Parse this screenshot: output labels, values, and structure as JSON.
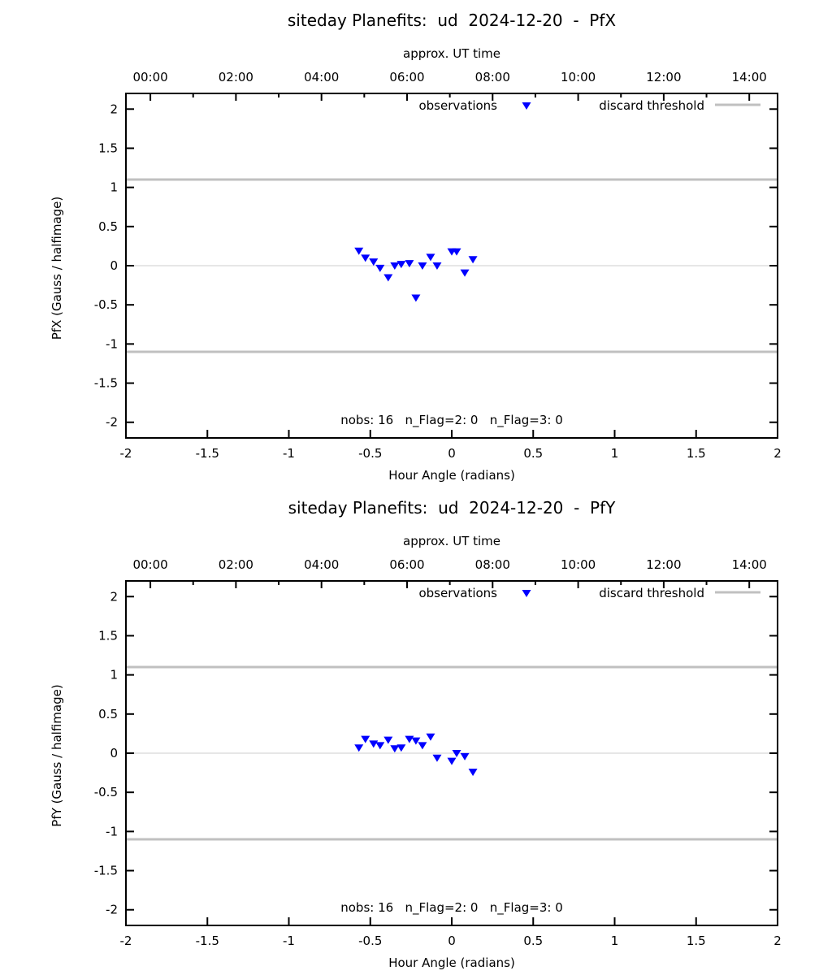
{
  "page": {
    "background": "#ffffff"
  },
  "colors": {
    "observations": "#0000ff",
    "threshold": "#c0c0c0",
    "zero_line": "#cccccc",
    "axis": "#000000"
  },
  "chart_data": [
    {
      "type": "scatter",
      "title": "siteday Planefits:  ud  2024-12-20  -  PfX",
      "x2label": "approx. UT time",
      "xlabel": "Hour Angle (radians)",
      "ylabel": "PfX (Gauss / halfimage)",
      "annotation": "nobs: 16   n_Flag=2: 0   n_Flag=3: 0",
      "xlim": [
        -2,
        2
      ],
      "ylim": [
        -2.2,
        2.2
      ],
      "grid": "zero-line-only",
      "legend_position": "top-inside",
      "x_ticks": [
        -2,
        -1.5,
        -1,
        -0.5,
        0,
        0.5,
        1,
        1.5,
        2
      ],
      "x_tick_labels": [
        "-2",
        "-1.5",
        "-1",
        "-0.5",
        "0",
        "0.5",
        "1",
        "1.5",
        "2"
      ],
      "y_ticks": [
        2,
        1.5,
        1,
        0.5,
        0,
        -0.5,
        -1,
        -1.5,
        -2
      ],
      "y_tick_labels": [
        "2",
        "1.5",
        "1",
        "0.5",
        "0",
        "-0.5",
        "-1",
        "-1.5",
        "-2"
      ],
      "x2_axis": {
        "labels": [
          "00:00",
          "02:00",
          "04:00",
          "06:00",
          "08:00",
          "10:00",
          "12:00",
          "14:00"
        ],
        "first_hour": 0,
        "last_hour": 14,
        "label_every_hours": 2,
        "hour_angle_at_0h": -1.85,
        "radians_per_hour": 0.2626
      },
      "thresholds": [
        1.1,
        -1.1
      ],
      "legend": [
        {
          "label": "observations",
          "marker": "triangle-down",
          "color": "#0000ff"
        },
        {
          "label": "discard threshold",
          "marker": "line",
          "color": "#c0c0c0"
        }
      ],
      "series": [
        {
          "name": "observations",
          "marker": "triangle-down",
          "color": "#0000ff",
          "points": [
            [
              -0.57,
              0.19
            ],
            [
              -0.53,
              0.1
            ],
            [
              -0.48,
              0.05
            ],
            [
              -0.44,
              -0.03
            ],
            [
              -0.39,
              -0.15
            ],
            [
              -0.35,
              0.0
            ],
            [
              -0.31,
              0.02
            ],
            [
              -0.26,
              0.03
            ],
            [
              -0.22,
              -0.41
            ],
            [
              -0.18,
              0.0
            ],
            [
              -0.13,
              0.11
            ],
            [
              -0.09,
              0.0
            ],
            [
              0.0,
              0.18
            ],
            [
              0.03,
              0.18
            ],
            [
              0.08,
              -0.09
            ],
            [
              0.13,
              0.08
            ]
          ]
        }
      ]
    },
    {
      "type": "scatter",
      "title": "siteday Planefits:  ud  2024-12-20  -  PfY",
      "x2label": "approx. UT time",
      "xlabel": "Hour Angle (radians)",
      "ylabel": "PfY (Gauss / halfimage)",
      "annotation": "nobs: 16   n_Flag=2: 0   n_Flag=3: 0",
      "xlim": [
        -2,
        2
      ],
      "ylim": [
        -2.2,
        2.2
      ],
      "grid": "zero-line-only",
      "legend_position": "top-inside",
      "x_ticks": [
        -2,
        -1.5,
        -1,
        -0.5,
        0,
        0.5,
        1,
        1.5,
        2
      ],
      "x_tick_labels": [
        "-2",
        "-1.5",
        "-1",
        "-0.5",
        "0",
        "0.5",
        "1",
        "1.5",
        "2"
      ],
      "y_ticks": [
        2,
        1.5,
        1,
        0.5,
        0,
        -0.5,
        -1,
        -1.5,
        -2
      ],
      "y_tick_labels": [
        "2",
        "1.5",
        "1",
        "0.5",
        "0",
        "-0.5",
        "-1",
        "-1.5",
        "-2"
      ],
      "x2_axis": {
        "labels": [
          "00:00",
          "02:00",
          "04:00",
          "06:00",
          "08:00",
          "10:00",
          "12:00",
          "14:00"
        ],
        "first_hour": 0,
        "last_hour": 14,
        "label_every_hours": 2,
        "hour_angle_at_0h": -1.85,
        "radians_per_hour": 0.2626
      },
      "thresholds": [
        1.1,
        -1.1
      ],
      "legend": [
        {
          "label": "observations",
          "marker": "triangle-down",
          "color": "#0000ff"
        },
        {
          "label": "discard threshold",
          "marker": "line",
          "color": "#c0c0c0"
        }
      ],
      "series": [
        {
          "name": "observations",
          "marker": "triangle-down",
          "color": "#0000ff",
          "points": [
            [
              -0.57,
              0.07
            ],
            [
              -0.53,
              0.18
            ],
            [
              -0.48,
              0.12
            ],
            [
              -0.44,
              0.1
            ],
            [
              -0.39,
              0.17
            ],
            [
              -0.35,
              0.06
            ],
            [
              -0.31,
              0.07
            ],
            [
              -0.26,
              0.18
            ],
            [
              -0.22,
              0.16
            ],
            [
              -0.18,
              0.1
            ],
            [
              -0.13,
              0.21
            ],
            [
              -0.09,
              -0.06
            ],
            [
              0.0,
              -0.1
            ],
            [
              0.03,
              0.0
            ],
            [
              0.08,
              -0.04
            ],
            [
              0.13,
              -0.24
            ]
          ]
        }
      ]
    }
  ]
}
